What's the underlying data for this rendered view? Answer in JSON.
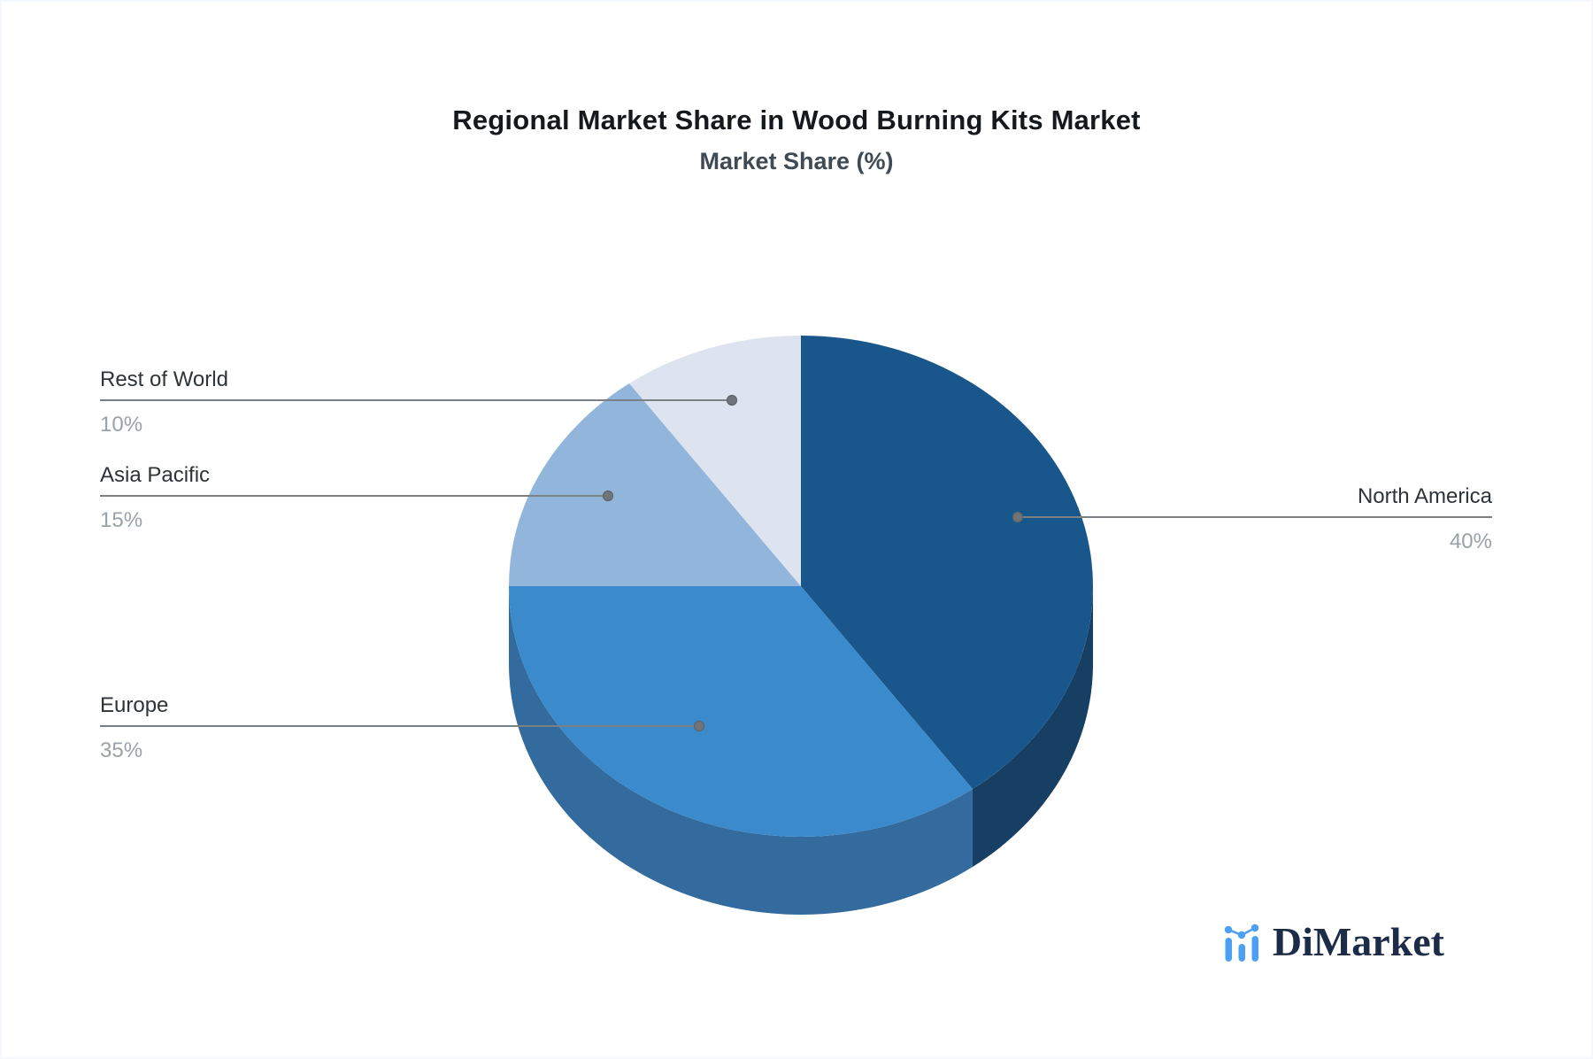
{
  "header": {
    "title": "Regional Market Share in Wood Burning Kits Market",
    "subtitle": "Market Share (%)"
  },
  "chart_data": {
    "type": "pie",
    "style": "3d",
    "title": "Regional Market Share in Wood Burning Kits Market",
    "subtitle": "Market Share (%)",
    "unit": "%",
    "labels": [
      "North America",
      "Europe",
      "Asia Pacific",
      "Rest of World"
    ],
    "values": [
      40,
      35,
      15,
      10
    ],
    "display_values": [
      "40%",
      "35%",
      "15%",
      "10%"
    ],
    "colors": [
      "#19568C",
      "#3B8ACC",
      "#92B5DB",
      "#DEE4EF"
    ],
    "side_colors": [
      "#173E63",
      "#336B9E",
      "#6F94BD",
      "#AFBDD2"
    ],
    "start_angle_deg": 90,
    "direction": "clockwise",
    "label_line_color": "#7b8085",
    "label_dot_color": "#6f7479",
    "legend": "none"
  },
  "branding": {
    "logo_text": "DiMarket",
    "logo_icon": "bar-chart-icon",
    "text_color": "#1c2b47",
    "icon_color": "#4BA0F4"
  }
}
